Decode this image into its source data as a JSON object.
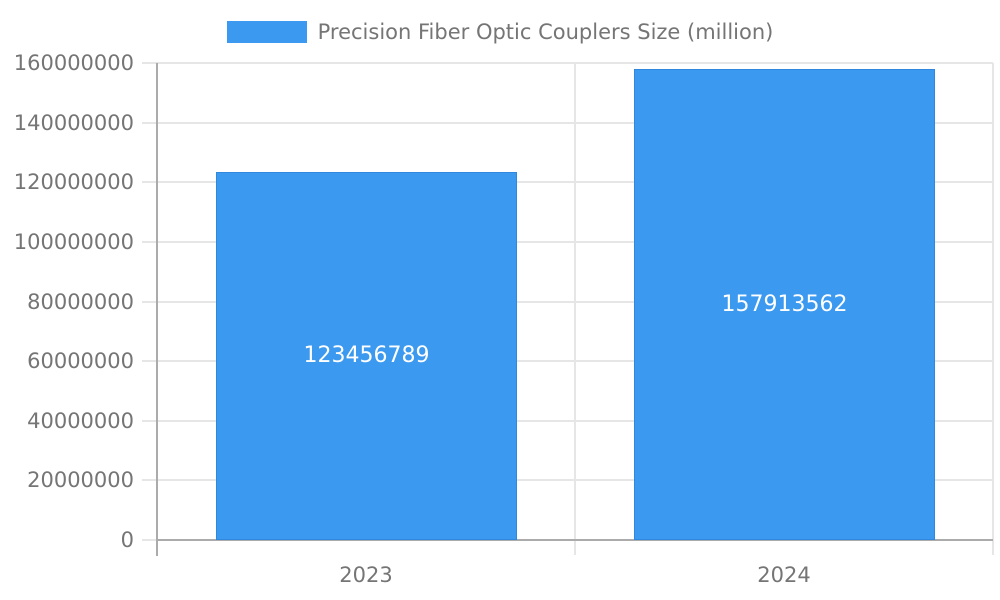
{
  "chart_data": {
    "type": "bar",
    "title": "",
    "legend": "Precision Fiber Optic Couplers Size (million)",
    "legend_position": "top",
    "categories": [
      "2023",
      "2024"
    ],
    "series": [
      {
        "name": "Precision Fiber Optic Couplers Size (million)",
        "values": [
          123456789,
          157913562
        ],
        "value_labels": [
          "123456789",
          "157913562"
        ]
      }
    ],
    "xlabel": "",
    "ylabel": "",
    "ylim": [
      0,
      160000000
    ],
    "ytick_step": 20000000,
    "ytick_labels": [
      "0",
      "20000000",
      "40000000",
      "60000000",
      "80000000",
      "100000000",
      "120000000",
      "140000000",
      "160000000"
    ],
    "grid": true,
    "colors": {
      "bar_fill": "#3B99F0",
      "bar_edge": "#2F88DD",
      "grid_line": "#E6E6E6",
      "axis_line": "#ABABAB",
      "tick_text": "#757575",
      "value_label_text": "#FFFFFF",
      "background": "#FFFFFF"
    }
  }
}
